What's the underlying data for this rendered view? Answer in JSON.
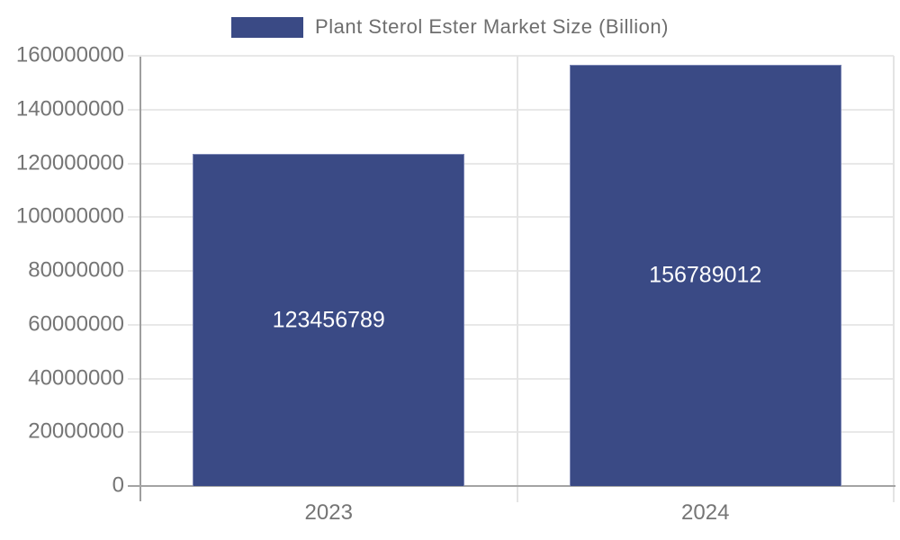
{
  "legend": {
    "label": "Plant Sterol Ester Market Size (Billion)"
  },
  "colors": {
    "bar": "#3a4a85",
    "bar_border": "#7b86b4",
    "grid": "#e8e8e8",
    "axis": "#9e9e9e",
    "tick_label": "#757575",
    "value_label": "#ffffff"
  },
  "chart_data": {
    "type": "bar",
    "title": "Plant Sterol Ester Market Size (Billion)",
    "categories": [
      "2023",
      "2024"
    ],
    "values": [
      123456789,
      156789012
    ],
    "bar_labels": [
      "123456789",
      "156789012"
    ],
    "xlabel": "",
    "ylabel": "",
    "ylim": [
      0,
      160000000
    ],
    "ytick_step": 20000000,
    "ytick_labels": [
      "0",
      "20000000",
      "40000000",
      "60000000",
      "80000000",
      "100000000",
      "120000000",
      "140000000",
      "160000000"
    ],
    "grid": true,
    "legend_position": "top-center",
    "value_labels_position": "center-inside",
    "bar_color": "#3a4a85"
  }
}
